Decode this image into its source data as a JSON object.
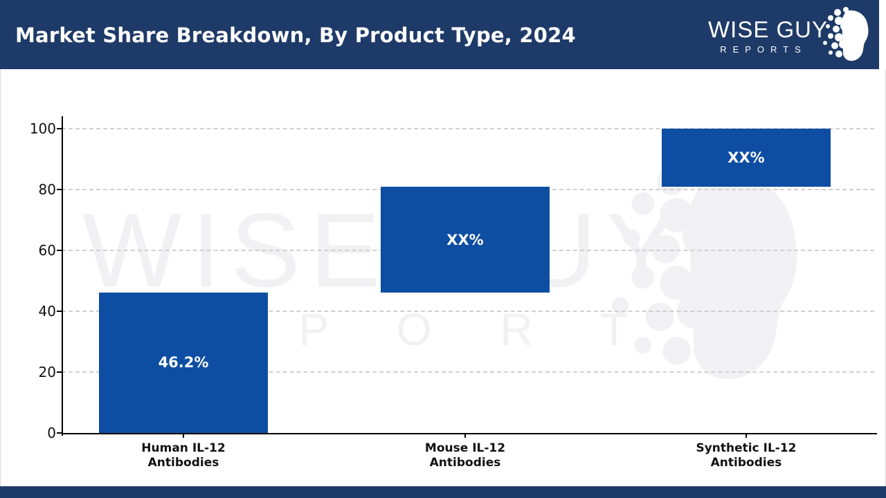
{
  "header": {
    "title": "Market Share Breakdown, By Product Type, 2024",
    "logo": {
      "line1": "WISE GUY",
      "line2": "REPORTS"
    }
  },
  "watermark": {
    "line1": "WISE GUY",
    "line2": "R E P O R T S"
  },
  "chart_data": {
    "type": "bar",
    "subtype": "floating-stacked-percentage",
    "title": "Market Share Breakdown, By Product Type, 2024",
    "categories": [
      {
        "line1": "Human IL-12",
        "line2": "Antibodies"
      },
      {
        "line1": "Mouse IL-12",
        "line2": "Antibodies"
      },
      {
        "line1": "Synthetic IL-12",
        "line2": "Antibodies"
      }
    ],
    "segments": [
      {
        "start": 0,
        "end": 46.2,
        "label": "46.2%"
      },
      {
        "start": 46.2,
        "end": 80.8,
        "label": "XX%"
      },
      {
        "start": 80.8,
        "end": 100.0,
        "label": "XX%"
      }
    ],
    "xlabel": "",
    "ylabel": "",
    "ylim": [
      0,
      100
    ],
    "yticks": [
      0,
      20,
      40,
      60,
      80,
      100
    ],
    "grid": true,
    "grid_style": "dashed",
    "legend": "none",
    "bar_color": "#0d4ea2",
    "value_label_color": "#ffffff",
    "header_color": "#1e3a68"
  }
}
